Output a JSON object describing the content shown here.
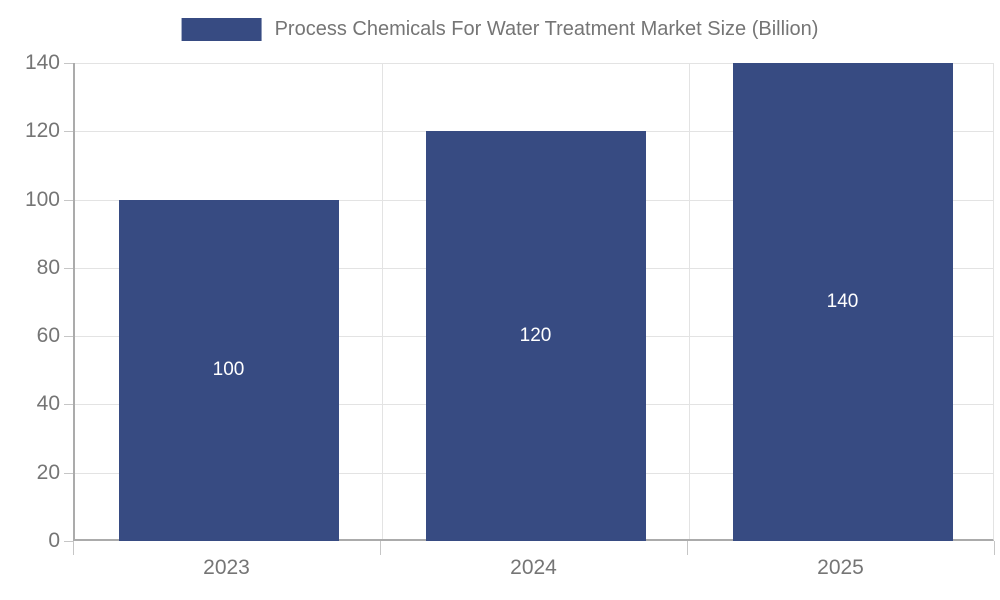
{
  "legend": {
    "label": "Process Chemicals For Water Treatment Market Size (Billion)"
  },
  "chart_data": {
    "type": "bar",
    "title": "Process Chemicals For Water Treatment Market Size (Billion)",
    "categories": [
      "2023",
      "2024",
      "2025"
    ],
    "series": [
      {
        "name": "Process Chemicals For Water Treatment Market Size (Billion)",
        "values": [
          100,
          120,
          140
        ]
      }
    ],
    "values": [
      100,
      120,
      140
    ],
    "value_labels": [
      "100",
      "120",
      "140"
    ],
    "xlabel": "",
    "ylabel": "",
    "ylim": [
      0,
      140
    ],
    "ytick_step": 20,
    "ytick_labels": [
      "0",
      "20",
      "40",
      "60",
      "80",
      "100",
      "120",
      "140"
    ],
    "grid": true,
    "legend_position": "top"
  },
  "colors": {
    "bar": "#374B82",
    "axis_line": "#ababab",
    "gridline": "#e3e3e3",
    "tick": "#c6c6c6",
    "tick_label": "#757575",
    "value_label": "#ffffff",
    "background": "#ffffff"
  }
}
